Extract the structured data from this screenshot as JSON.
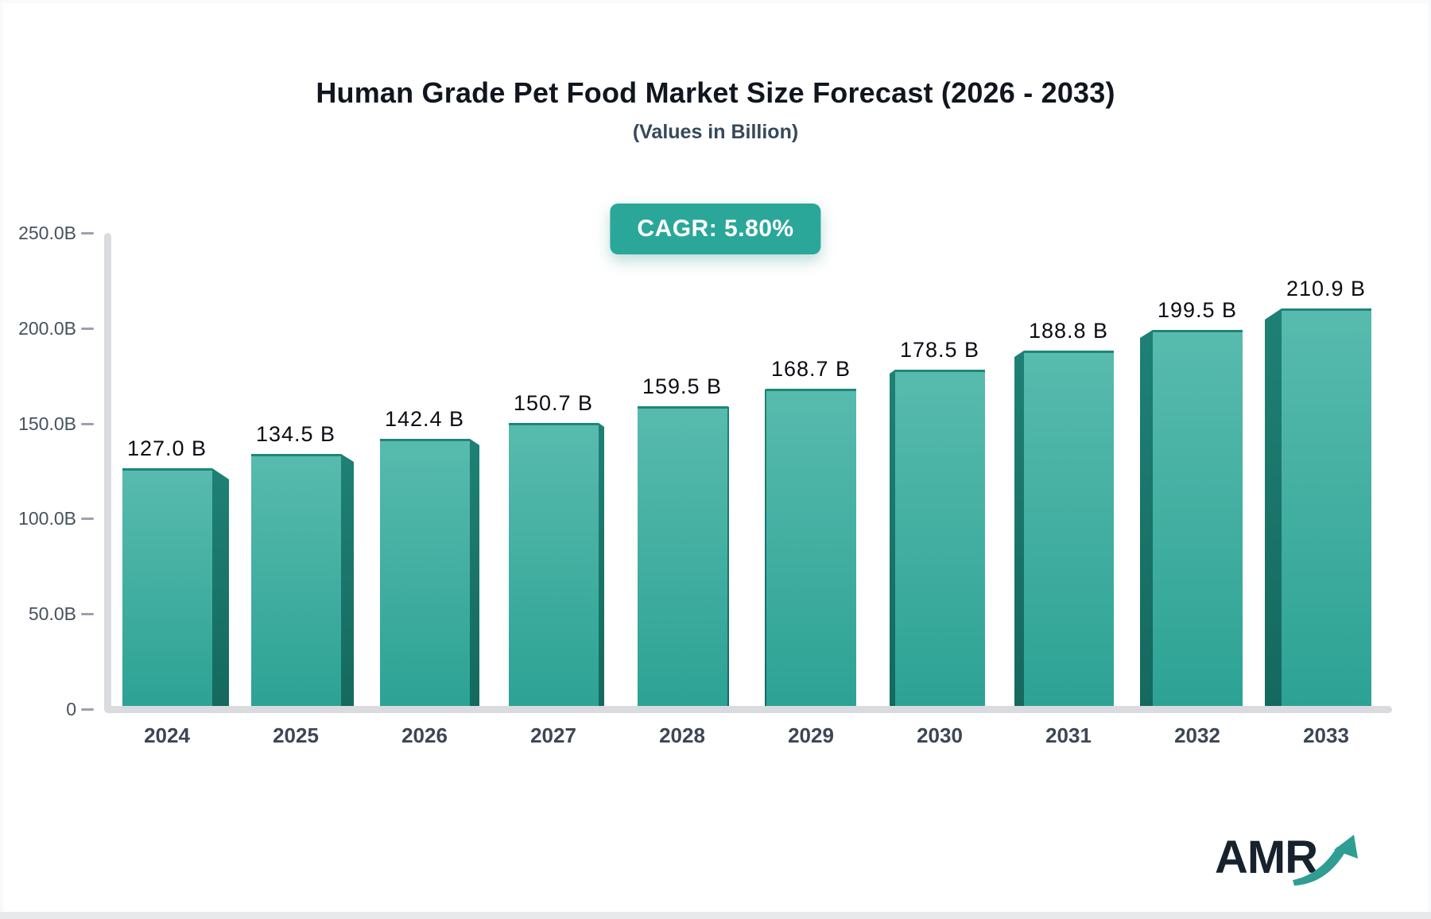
{
  "page": {
    "title": "Human Grade Pet Food Market Size Forecast (2026 - 2033)",
    "subtitle": "(Values in Billion)",
    "cagr_badge": "CAGR: 5.80%"
  },
  "chart_data": {
    "type": "bar",
    "title": "Human Grade Pet Food Market Size Forecast (2026 - 2033)",
    "subtitle": "(Values in Billion)",
    "annotation": "CAGR: 5.80%",
    "categories": [
      "2024",
      "2025",
      "2026",
      "2027",
      "2028",
      "2029",
      "2030",
      "2031",
      "2032",
      "2033"
    ],
    "values": [
      127.0,
      134.5,
      142.4,
      150.7,
      159.5,
      168.7,
      178.5,
      188.8,
      199.5,
      210.9
    ],
    "value_labels": [
      "127.0 B",
      "134.5 B",
      "142.4 B",
      "150.7 B",
      "159.5 B",
      "168.7 B",
      "178.5 B",
      "188.8 B",
      "199.5 B",
      "210.9 B"
    ],
    "xlabel": "",
    "ylabel": "",
    "ylim": [
      0,
      250
    ],
    "grid": false,
    "legend": null,
    "y_axis": {
      "ticks": [
        "250.0B",
        "200.0B",
        "150.0B",
        "100.0B",
        "50.0B",
        "0"
      ],
      "tick_values": [
        250,
        200,
        150,
        100,
        50,
        0
      ],
      "max": 250
    }
  },
  "colors": {
    "accent": "#2ba79a",
    "bar_top": "#58bbae",
    "bar_bottom": "#2ca294",
    "bar_edge": "#1f8679",
    "bar_side_top": "#1e8175",
    "bar_side_bottom": "#15685e",
    "axis_line": "#d9dbdf",
    "tick": "#9ba1ac",
    "logo_text": "#16222e",
    "logo_arrow": "#2f9d92"
  },
  "logo": {
    "text": "AMR"
  }
}
